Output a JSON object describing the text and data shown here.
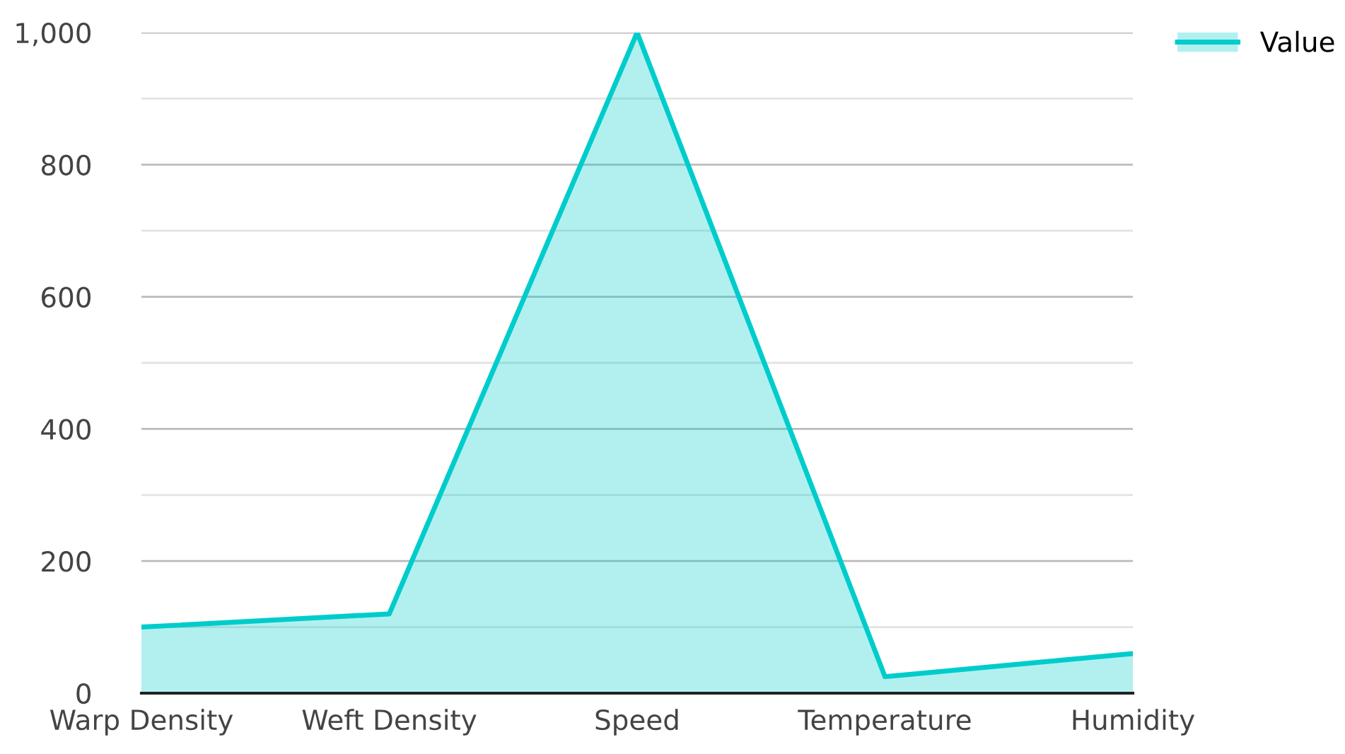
{
  "chart_data": {
    "type": "area",
    "categories": [
      "Warp Density",
      "Weft Density",
      "Speed",
      "Temperature",
      "Humidity"
    ],
    "series": [
      {
        "name": "Value",
        "color": "#00cccc",
        "values": [
          100,
          120,
          1000,
          25,
          60
        ]
      }
    ],
    "ylim": [
      0,
      1000
    ],
    "yticks": [
      0,
      {
        "value": 100,
        "label": null
      },
      200,
      {
        "value": 300,
        "label": null
      },
      400,
      {
        "value": 500,
        "label": null
      },
      600,
      {
        "value": 700,
        "label": null
      },
      800,
      {
        "value": 900,
        "label": null
      },
      {
        "value": 1000,
        "label": "1,000"
      }
    ],
    "grid": "y",
    "legend": "top right"
  }
}
